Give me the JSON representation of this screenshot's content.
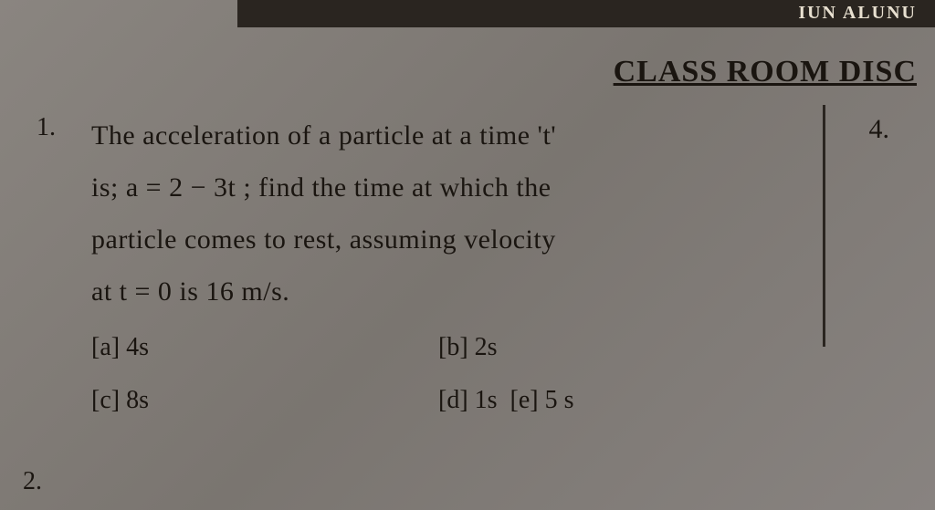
{
  "top_bar_text": "IUN ALUNU",
  "heading": "CLASS ROOM DISC",
  "question1": {
    "number": "1.",
    "line1": "The acceleration of a particle at a time 't'",
    "line2": "is;  a = 2 − 3t ;  find the time at which the",
    "line3": "particle comes to rest, assuming velocity",
    "line4": "at  t = 0 is 16 m/s.",
    "options": {
      "a": "[a] 4s",
      "b": "[b] 2s",
      "c": "[c] 8s",
      "d": "[d] 1s",
      "e": "[e] 5 s"
    }
  },
  "question2_number": "2.",
  "question4_number": "4.",
  "colors": {
    "text": "#1a1510",
    "background_start": "#8a8580",
    "background_end": "#888380",
    "top_bar_bg": "#2a2520",
    "top_bar_text": "#e8e0d0"
  },
  "typography": {
    "heading_fontsize": 34,
    "body_fontsize": 30,
    "option_fontsize": 28,
    "font_family": "Georgia, Times New Roman, serif"
  }
}
